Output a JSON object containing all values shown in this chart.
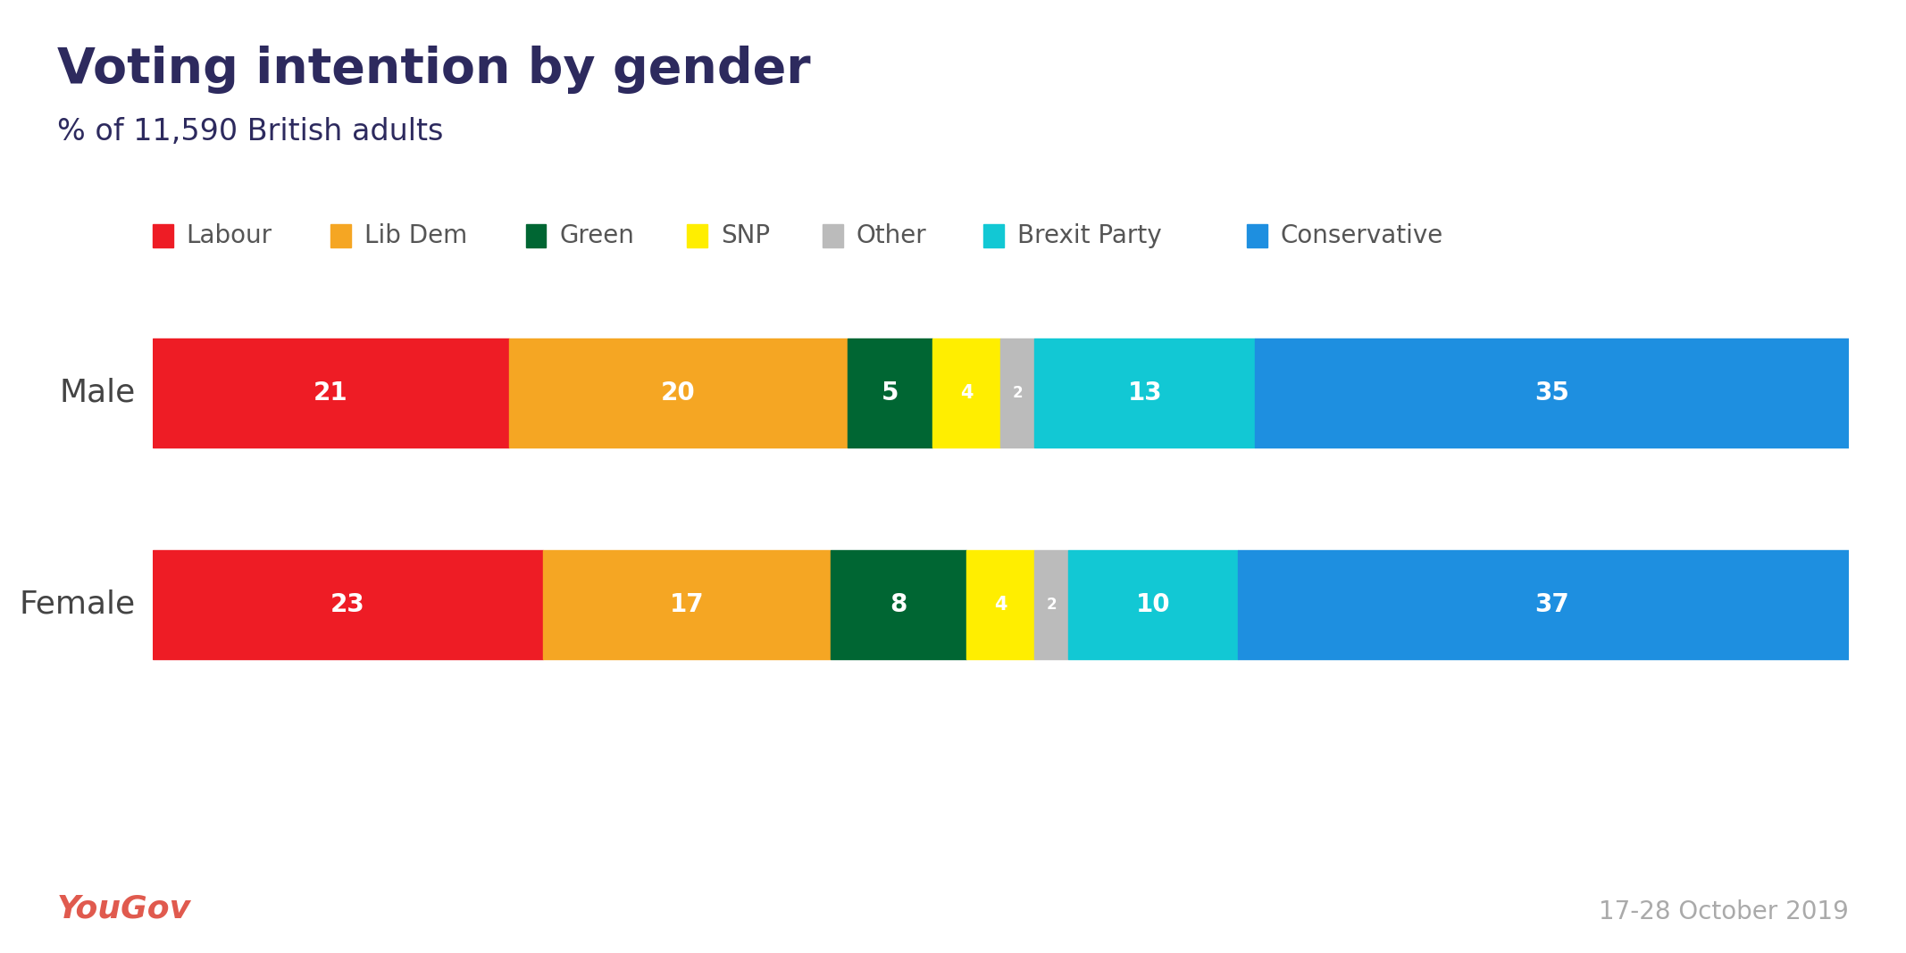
{
  "title": "Voting intention by gender",
  "subtitle": "% of 11,590 British adults",
  "date_label": "17-28 October 2019",
  "yougov_label": "YouGov",
  "header_bg_color": "#e8e6f0",
  "body_bg_color": "#ffffff",
  "parties": [
    "Labour",
    "Lib Dem",
    "Green",
    "SNP",
    "Other",
    "Brexit Party",
    "Conservative"
  ],
  "colors": [
    "#ee1c25",
    "#f5a623",
    "#006633",
    "#ffee00",
    "#bbbbbb",
    "#12c8d4",
    "#1e8fe0"
  ],
  "male_values": [
    21,
    20,
    5,
    4,
    2,
    13,
    35
  ],
  "female_values": [
    23,
    17,
    8,
    4,
    2,
    10,
    37
  ],
  "title_color": "#2d2a5e",
  "subtitle_color": "#2d2a5e",
  "label_color": "#ffffff",
  "row_label_color": "#444444",
  "bar_label_fontsize": 20,
  "title_fontsize": 40,
  "subtitle_fontsize": 24,
  "legend_fontsize": 20,
  "row_label_fontsize": 26,
  "yougov_color": "#e05a4e",
  "date_color": "#aaaaaa",
  "footer_fontsize": 20
}
